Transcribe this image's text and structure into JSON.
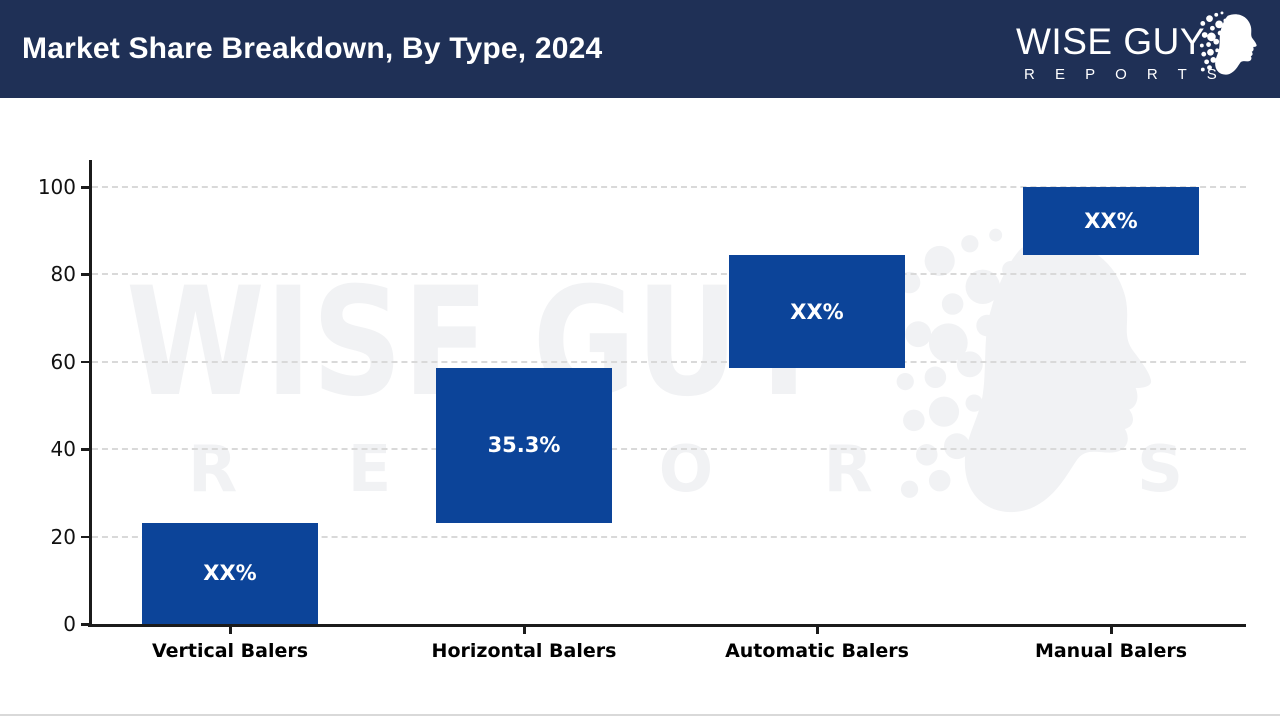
{
  "header": {
    "title": "Market Share Breakdown, By Type, 2024",
    "logo": {
      "line1": "WISE GUY",
      "line2": "R E P O R T S"
    }
  },
  "watermark": {
    "line1": "WISE GUY",
    "line2": "R E P O R T S"
  },
  "chart_data": {
    "type": "bar",
    "subtype": "floating-bars-waterfall",
    "title": "Market Share Breakdown, By Type, 2024",
    "categories": [
      "Vertical Balers",
      "Horizontal Balers",
      "Automatic Balers",
      "Manual Balers"
    ],
    "series": [
      {
        "name": "Market share (%)",
        "bar_start": [
          0,
          23.2,
          58.5,
          84.5
        ],
        "bar_end": [
          23.2,
          58.5,
          84.4,
          100
        ],
        "labels": [
          "XX%",
          "35.3%",
          "XX%",
          "XX%"
        ]
      }
    ],
    "xlabel": "",
    "ylabel": "",
    "ylim": [
      0,
      100
    ],
    "yticks": [
      0,
      20,
      40,
      60,
      80,
      100
    ],
    "grid": "horizontal dashed",
    "legend": "none",
    "bar_color": "#0c4499",
    "bar_label_color": "#ffffff"
  },
  "colors": {
    "header_bg": "#1f3056",
    "bar": "#0c4499",
    "grid": "#d9d9d9",
    "axis": "#1b1b1b",
    "tick_text": "#111111",
    "watermark": "#f1f2f4",
    "divider": "#d9d9d9"
  }
}
